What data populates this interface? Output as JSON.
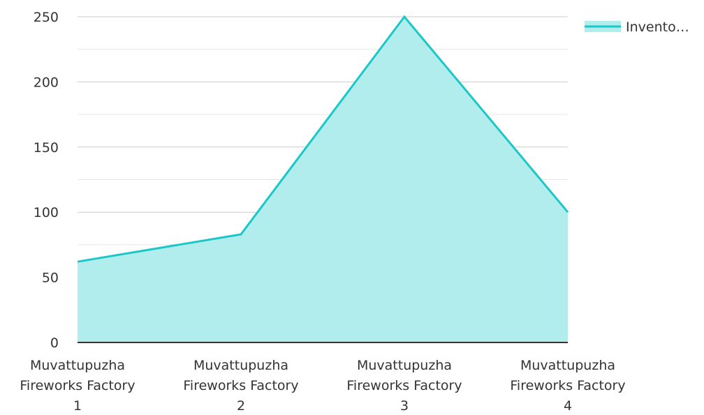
{
  "chart_data": {
    "type": "area",
    "categories": [
      [
        "Muvattupuzha",
        "Fireworks Factory",
        "1"
      ],
      [
        "Muvattupuzha",
        "Fireworks Factory",
        "2"
      ],
      [
        "Muvattupuzha",
        "Fireworks Factory",
        "3"
      ],
      [
        "Muvattupuzha",
        "Fireworks Factory",
        "4"
      ]
    ],
    "series": [
      {
        "name": "Invento…",
        "values": [
          62,
          83,
          250,
          100
        ],
        "line_color": "#1cc7c7",
        "fill_color": "#b2eded"
      }
    ],
    "title": "",
    "xlabel": "",
    "ylabel": "",
    "ylim": [
      0,
      250
    ],
    "yticks": [
      0,
      50,
      100,
      150,
      200,
      250
    ],
    "yticks_minor": [
      25,
      75,
      125,
      175,
      225
    ],
    "grid": true,
    "legend": "top-right"
  }
}
